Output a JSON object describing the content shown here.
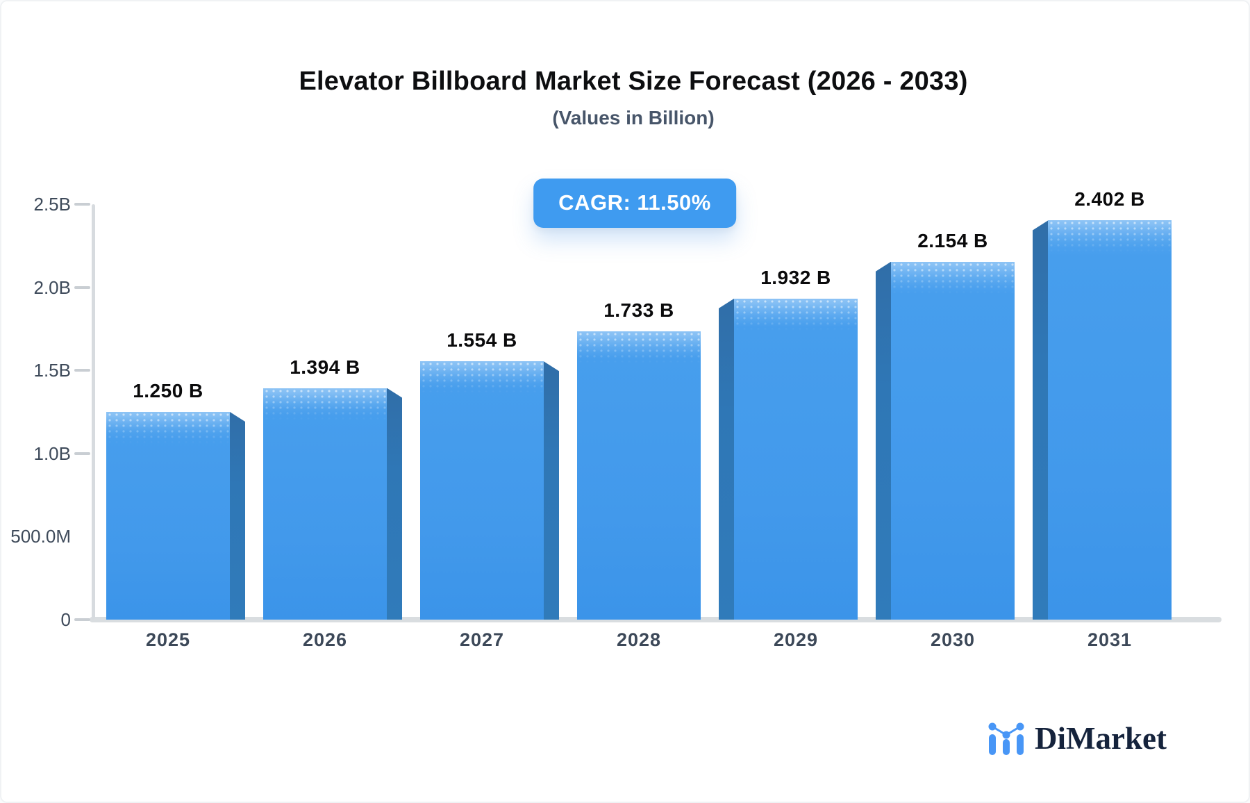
{
  "chart_data": {
    "type": "bar",
    "title": "Elevator Billboard Market Size Forecast (2026 - 2033)",
    "subtitle": "(Values in Billion)",
    "cagr_label": "CAGR: 11.50%",
    "categories": [
      "2025",
      "2026",
      "2027",
      "2028",
      "2029",
      "2030",
      "2031"
    ],
    "values": [
      1.25,
      1.394,
      1.554,
      1.733,
      1.932,
      2.154,
      2.402
    ],
    "value_labels": [
      "1.250 B",
      "1.394 B",
      "1.554 B",
      "1.733 B",
      "1.932 B",
      "2.154 B",
      "2.402 B"
    ],
    "xlabel": "",
    "ylabel": "",
    "ylim": [
      0,
      2.5
    ],
    "y_axis": {
      "ticks": [
        {
          "label": "2.5B",
          "value": 2.5,
          "tick_mark": true
        },
        {
          "label": "2.0B",
          "value": 2.0,
          "tick_mark": true
        },
        {
          "label": "1.5B",
          "value": 1.5,
          "tick_mark": true
        },
        {
          "label": "1.0B",
          "value": 1.0,
          "tick_mark": true
        },
        {
          "label": "500.0M",
          "value": 0.5,
          "tick_mark": false
        },
        {
          "label": "0",
          "value": 0.0,
          "tick_mark": true
        }
      ]
    },
    "grid": false,
    "legend": false,
    "bar_style": "3d-extruded-toward-center",
    "colors": {
      "bar_face": "#479EED",
      "bar_face_light": "#6DB5F3",
      "bar_face_dark": "#3B94E9",
      "bar_side": "#2F77B6",
      "badge_bg": "#3F9BF0",
      "badge_text": "#FFFFFF",
      "axis": "#D7DBDF",
      "tick_text": "#3E4A5A",
      "value_text": "#0A0A0B",
      "title_text": "#0D0E10",
      "subtitle_text": "#475569",
      "brand_text": "#15233C",
      "brand_icon": "#4896F6"
    }
  },
  "footer": {
    "brand": "DiMarket",
    "icon": "bar-line-chart-icon"
  }
}
